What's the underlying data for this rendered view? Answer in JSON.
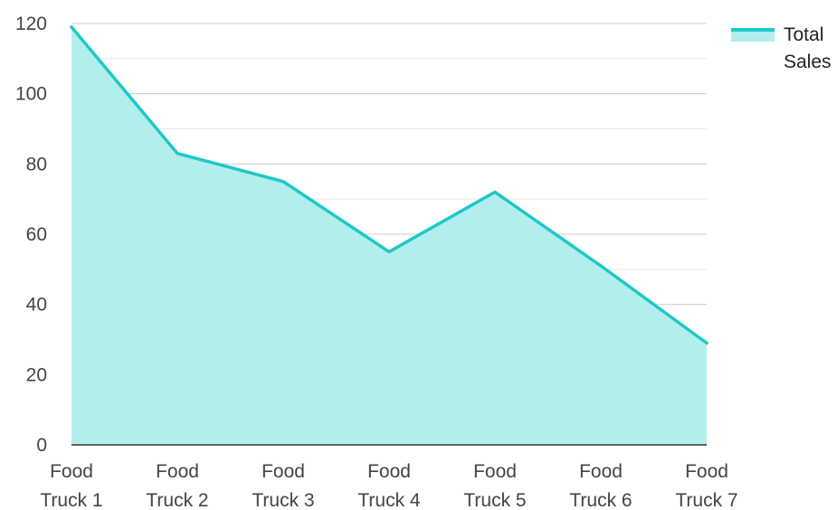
{
  "chart_data": {
    "type": "area",
    "categories": [
      [
        "Food",
        "Truck 1"
      ],
      [
        "Food",
        "Truck 2"
      ],
      [
        "Food",
        "Truck 3"
      ],
      [
        "Food",
        "Truck 4"
      ],
      [
        "Food",
        "Truck 5"
      ],
      [
        "Food",
        "Truck 6"
      ],
      [
        "Food",
        "Truck 7"
      ]
    ],
    "series": [
      {
        "name": "Total Sales",
        "values": [
          119,
          83,
          75,
          55,
          72,
          51,
          29
        ]
      }
    ],
    "ylim": [
      0,
      120
    ],
    "yticks": [
      0,
      20,
      40,
      60,
      80,
      100,
      120
    ],
    "ytick_labels": [
      "0",
      "20",
      "40",
      "60",
      "80",
      "100",
      "120"
    ],
    "grid": true,
    "legend_position": "top-right",
    "colors": {
      "line": "#1ec8c8",
      "fill": "#b2efec",
      "grid_major": "#cccccc",
      "grid_minor": "#e6e6e6",
      "axis": "#333333"
    }
  },
  "legend": {
    "label": "Total Sales"
  }
}
